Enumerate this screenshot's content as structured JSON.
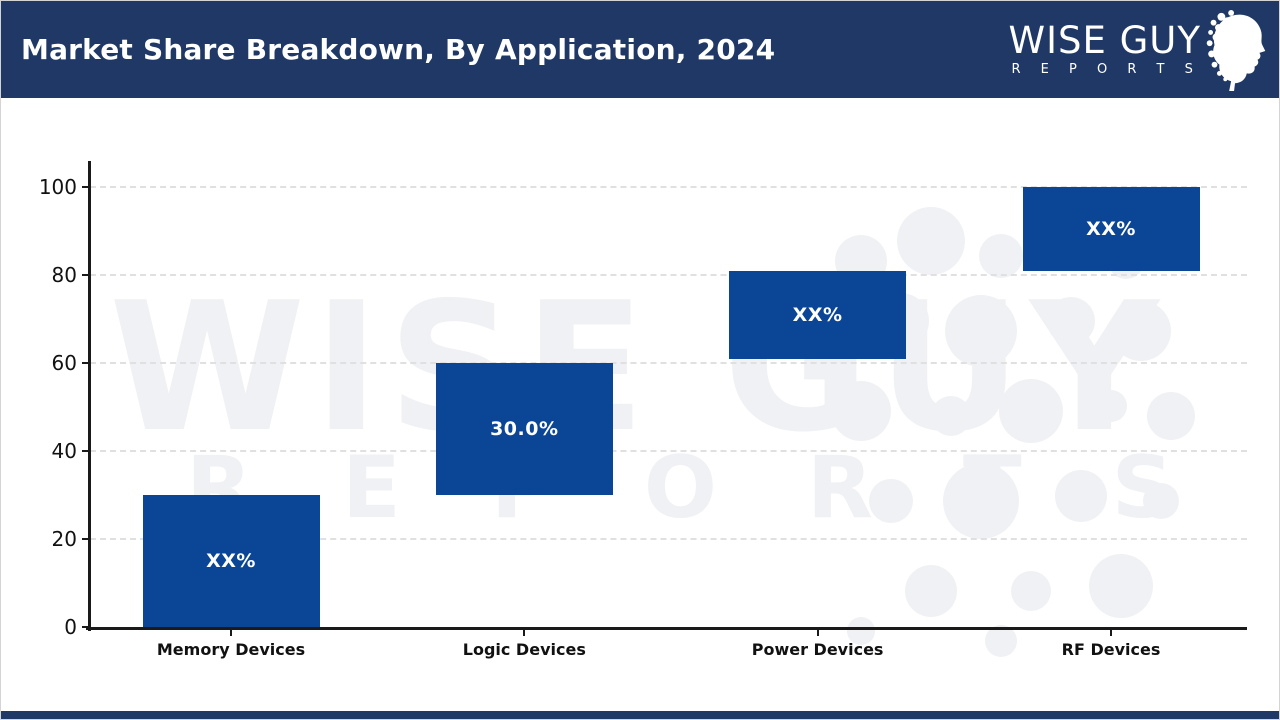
{
  "header": {
    "title": "Market Share Breakdown, By Application, 2024",
    "logo": {
      "wordmark": "WISE GUY",
      "subtext": "R E P O R T S"
    }
  },
  "watermark": {
    "line1": "WISE GUY",
    "line2": "R E P O R T S"
  },
  "colors": {
    "header_bg": "#203865",
    "bar": "#0b4596",
    "watermark": "#f0f1f4",
    "grid": "#e0e0e0",
    "axis": "#1a1a1a"
  },
  "chart_data": {
    "type": "bar",
    "subtype": "waterfall",
    "title": "Market Share Breakdown, By Application, 2024",
    "categories": [
      "Memory Devices",
      "Logic Devices",
      "Power Devices",
      "RF Devices"
    ],
    "bars": [
      {
        "category": "Memory Devices",
        "start": 0,
        "end": 30,
        "label": "XX%"
      },
      {
        "category": "Logic Devices",
        "start": 30,
        "end": 60,
        "label": "30.0%"
      },
      {
        "category": "Power Devices",
        "start": 61,
        "end": 81,
        "label": "XX%"
      },
      {
        "category": "RF Devices",
        "start": 81,
        "end": 100,
        "label": "XX%"
      }
    ],
    "xlabel": "",
    "ylabel": "",
    "ylim": [
      0,
      105
    ],
    "yticks": [
      0,
      20,
      40,
      60,
      80,
      100
    ],
    "grid": "horizontal-dashed",
    "legend": "none",
    "bar_color": "#0b4596"
  }
}
